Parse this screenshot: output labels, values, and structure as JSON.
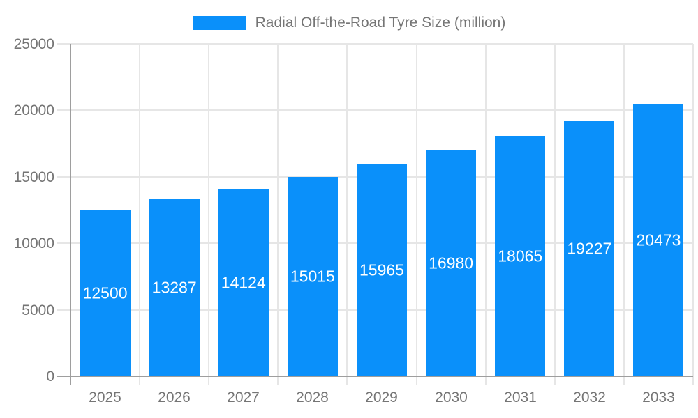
{
  "chart_data": {
    "type": "bar",
    "title": "",
    "legend": {
      "label": "Radial Off-the-Road Tyre Size (million)",
      "position": "top"
    },
    "categories": [
      "2025",
      "2026",
      "2027",
      "2028",
      "2029",
      "2030",
      "2031",
      "2032",
      "2033"
    ],
    "series": [
      {
        "name": "Radial Off-the-Road Tyre Size (million)",
        "values": [
          12500,
          13287,
          14124,
          15015,
          15965,
          16980,
          18065,
          19227,
          20473
        ]
      }
    ],
    "value_labels_shown": true,
    "xlabel": "",
    "ylabel": "",
    "ylim": [
      0,
      25000
    ],
    "yticks": [
      0,
      5000,
      10000,
      15000,
      20000,
      25000
    ],
    "grid": true,
    "legend_position": "top",
    "colors": {
      "bar": "#0A90FA",
      "value_label_text": "#FFFFFF",
      "axis_text": "#757575",
      "gridline": "#E6E6E6",
      "axis_line": "#9E9E9E",
      "background": "#FFFFFF"
    }
  }
}
